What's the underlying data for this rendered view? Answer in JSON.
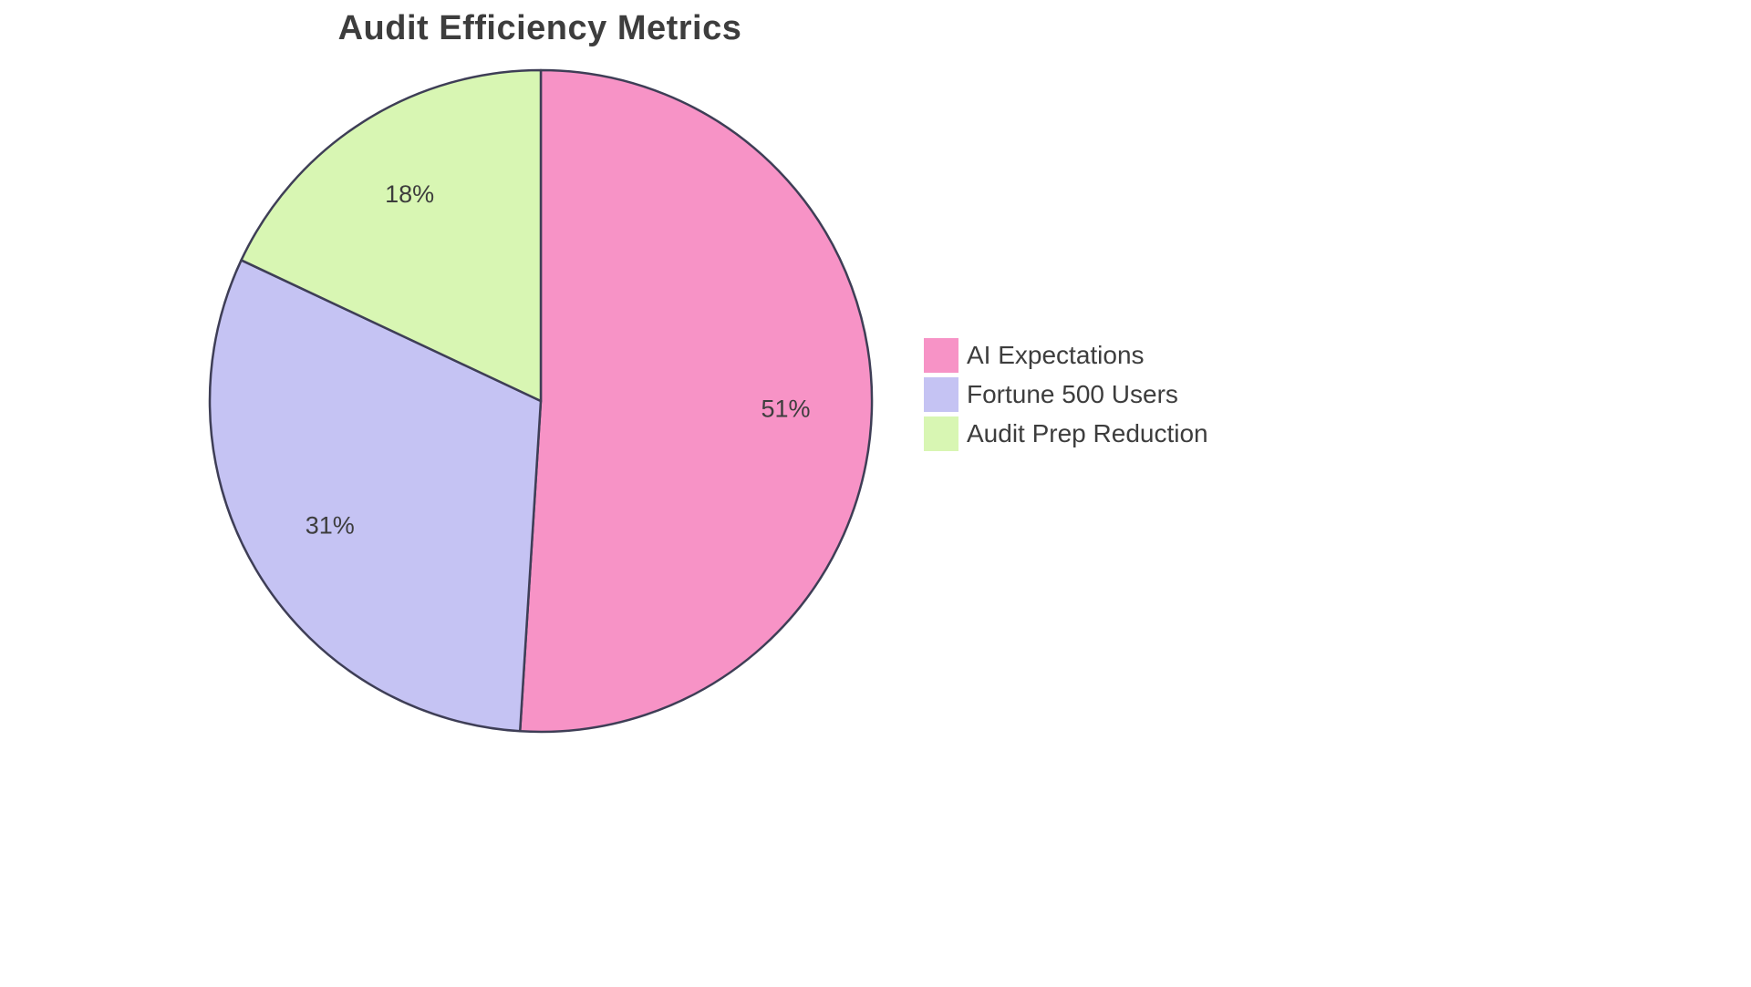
{
  "chart_data": {
    "type": "pie",
    "title": "Audit Efficiency Metrics",
    "slices": [
      {
        "label": "AI Expectations",
        "value": 51,
        "pct_label": "51%",
        "color": "#F793C6"
      },
      {
        "label": "Fortune 500 Users",
        "value": 31,
        "pct_label": "31%",
        "color": "#C5C3F3"
      },
      {
        "label": "Audit Prep Reduction",
        "value": 18,
        "pct_label": "18%",
        "color": "#D8F6B3"
      }
    ],
    "start_angle_deg": 0,
    "direction": "clockwise",
    "legend_position": "right",
    "stroke_color": "#3E3E56",
    "label_color": "#3d3d3d"
  }
}
